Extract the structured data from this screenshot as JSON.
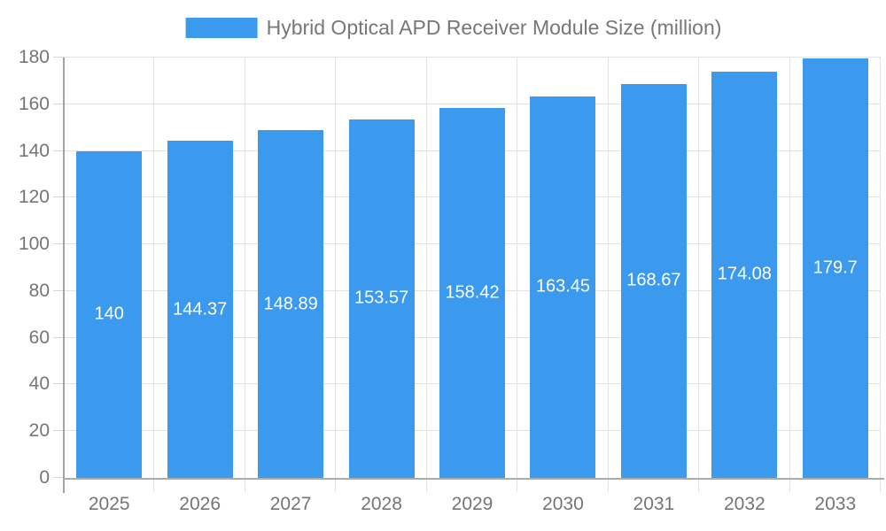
{
  "legend": {
    "label": "Hybrid Optical APD Receiver Module Size (million)",
    "swatch_color": "#3b99ee"
  },
  "colors": {
    "bar": "#3b99ee",
    "bar_label_text": "#ffffff",
    "grid_line": "#e2e2e2",
    "axis_line": "#a2a2a2",
    "baseline": "#ababab",
    "tick_label_text": "#757575",
    "background": "#ffffff"
  },
  "chart_data": {
    "type": "bar",
    "title": "Hybrid Optical APD Receiver Module Size (million)",
    "series_name": "Hybrid Optical APD Receiver Module Size (million)",
    "categories": [
      "2025",
      "2026",
      "2027",
      "2028",
      "2029",
      "2030",
      "2031",
      "2032",
      "2033"
    ],
    "values": [
      140,
      144.37,
      148.89,
      153.57,
      158.42,
      163.45,
      168.67,
      174.08,
      179.7
    ],
    "bar_labels": [
      "140",
      "144.37",
      "148.89",
      "153.57",
      "158.42",
      "163.45",
      "168.67",
      "174.08",
      "179.7"
    ],
    "xlabel": "",
    "ylabel": "",
    "ylim": [
      0,
      180
    ],
    "yticks": [
      0,
      20,
      40,
      60,
      80,
      100,
      120,
      140,
      160,
      180
    ],
    "grid": true,
    "legend_position": "top"
  }
}
